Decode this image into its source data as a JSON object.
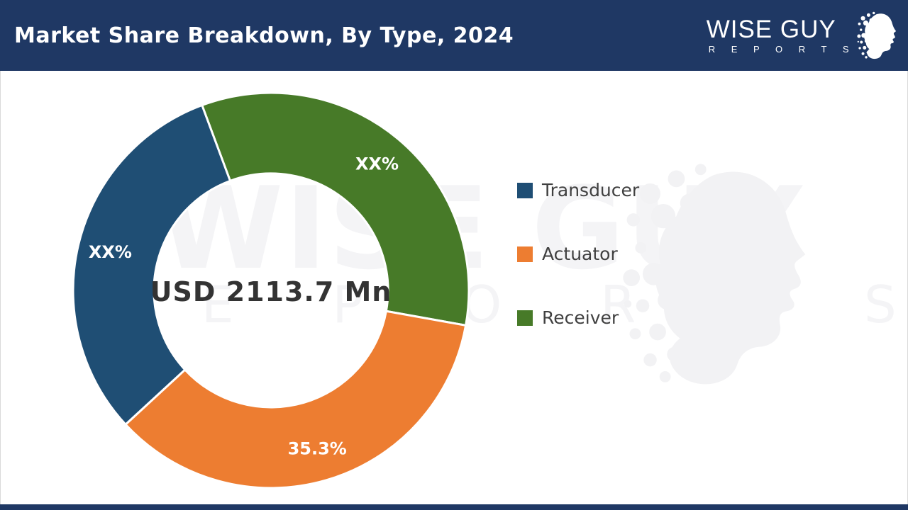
{
  "header": {
    "title": "Market Share Breakdown, By Type, 2024",
    "logo": {
      "wordmark": "WISE GUY",
      "subtitle": "R E P O R T S"
    },
    "background_color": "#1f3864",
    "title_color": "#ffffff"
  },
  "watermark": {
    "line1": "WISE GUY",
    "line2": "E P O R T S",
    "color": "#f4f4f6"
  },
  "chart_data": {
    "type": "pie",
    "subtype": "donut",
    "title": "Market Share Breakdown, By Type, 2024",
    "center_label": "USD 2113.7 Mn",
    "categories": [
      "Transducer",
      "Actuator",
      "Receiver"
    ],
    "series": [
      {
        "name": "Transducer",
        "value": 31.2,
        "display_label": "XX%",
        "color": "#1f4e74"
      },
      {
        "name": "Actuator",
        "value": 35.3,
        "display_label": "35.3%",
        "color": "#ed7d31"
      },
      {
        "name": "Receiver",
        "value": 33.5,
        "display_label": "XX%",
        "color": "#477a28"
      }
    ],
    "start_angle_deg": 110.4,
    "direction": "clockwise",
    "draw_order": "reversed",
    "inner_radius_ratio": 0.59,
    "legend_position": "right",
    "slice_separator_color": "#ffffff",
    "note": "Transducer and Receiver percentages masked as XX% in source image"
  },
  "footer": {
    "background_color": "#1f3864"
  }
}
